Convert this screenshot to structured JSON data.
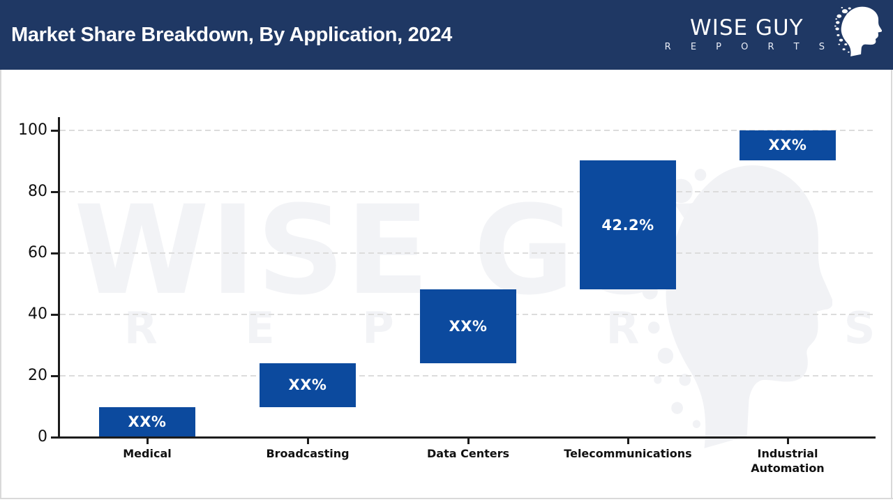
{
  "header": {
    "title": "Market Share Breakdown, By Application, 2024",
    "logo_name": "WISE GUY",
    "logo_sub": "R E P O R T S"
  },
  "watermark": {
    "line1": "WISE GUY",
    "line2": "R E P O R T S"
  },
  "colors": {
    "header_bg": "#1f3864",
    "bar": "#0c4a9e",
    "bar_label": "#ffffff",
    "grid": "#dcdcdc",
    "axis": "#1c1c1c",
    "watermark": "#f2f3f6"
  },
  "chart_data": {
    "type": "bar",
    "subtype": "waterfall",
    "title": "Market Share Breakdown, By Application, 2024",
    "categories": [
      "Medical",
      "Broadcasting",
      "Data Centers",
      "Telecommunications",
      "Industrial Automation"
    ],
    "tick_labels": [
      "Medical",
      "Broadcasting",
      "Data Centers",
      "Telecommunications",
      "Industrial\nAutomation"
    ],
    "segments": [
      {
        "category": "Medical",
        "start": 0,
        "end": 9.8,
        "value_label": "XX%"
      },
      {
        "category": "Broadcasting",
        "start": 9.8,
        "end": 24.1,
        "value_label": "XX%"
      },
      {
        "category": "Data Centers",
        "start": 24.1,
        "end": 48.1,
        "value_label": "XX%"
      },
      {
        "category": "Telecommunications",
        "start": 48.1,
        "end": 90.3,
        "value_label": "42.2%"
      },
      {
        "category": "Industrial Automation",
        "start": 90.3,
        "end": 100,
        "value_label": "XX%"
      }
    ],
    "xlabel": "",
    "ylabel": "",
    "ylim": [
      0,
      100
    ],
    "yticks": [
      0,
      20,
      40,
      60,
      80,
      100
    ],
    "grid": "horizontal-dashed",
    "legend": "none",
    "bar_color": "#0c4a9e"
  }
}
